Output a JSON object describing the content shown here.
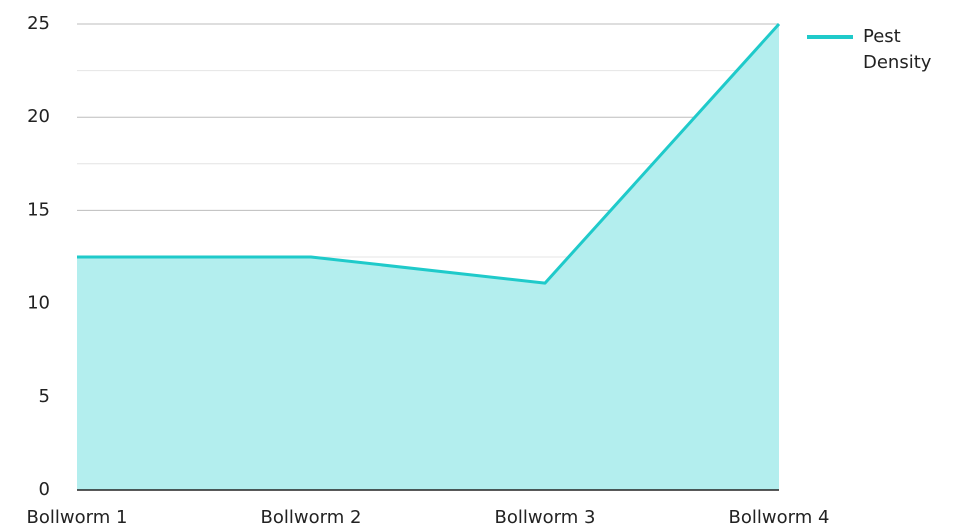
{
  "chart_data": {
    "type": "area",
    "categories": [
      "Bollworm 1",
      "Bollworm 2",
      "Bollworm 3",
      "Bollworm 4"
    ],
    "series": [
      {
        "name": "Pest Density",
        "color": "#1fcaca",
        "fill": "#b3eeee",
        "values": [
          12.5,
          12.5,
          11.1,
          25
        ]
      }
    ],
    "ylim": [
      0,
      25
    ],
    "yticks": [
      0,
      5,
      10,
      15,
      20,
      25
    ],
    "yminor_ticks": [
      2.5,
      7.5,
      12.5,
      17.5,
      22.5
    ],
    "grid": true,
    "legend": "top-right"
  }
}
